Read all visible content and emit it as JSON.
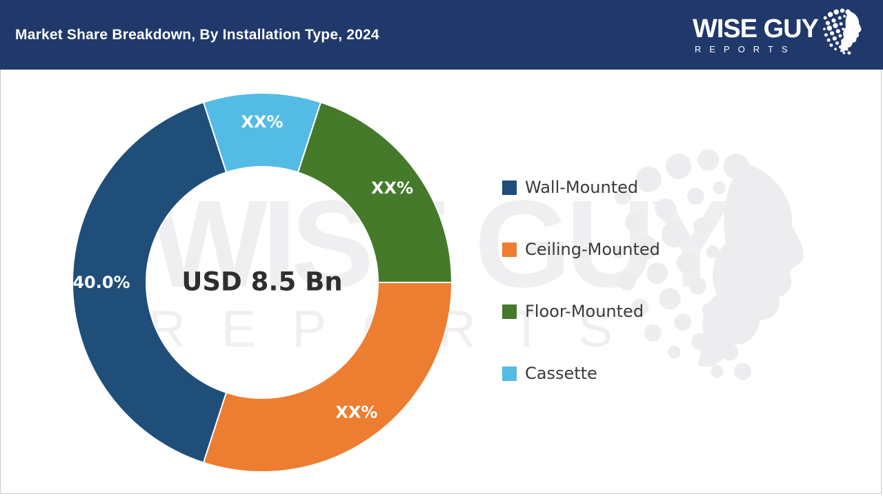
{
  "header": {
    "title": "Market Share Breakdown, By Installation Type, 2024",
    "brand": {
      "line1": "WISE GUY",
      "line2": "REPORTS"
    }
  },
  "watermark": {
    "line1": "WISE GUY",
    "line2": "REPORTS"
  },
  "colors": {
    "header_bg": "#20386a",
    "wall_mounted": "#1f4e79",
    "ceiling_mounted": "#ed7d31",
    "floor_mounted": "#447a29",
    "cassette": "#54bce4",
    "center_label_text": "#2e2e2e",
    "legend_text": "#3a3a3a",
    "slice_label_text": "#ffffff"
  },
  "chart_data": {
    "type": "pie",
    "subtype": "donut",
    "title": "Market Share Breakdown, By Installation Type, 2024",
    "center_label": "USD 8.5 Bn",
    "start_angle_deg": 108,
    "direction": "counterclockwise",
    "legend_position": "right",
    "slices": [
      {
        "name": "Wall-Mounted",
        "value_pct": 40,
        "display_label": "40.0%",
        "color": "#1f4e79"
      },
      {
        "name": "Ceiling-Mounted",
        "value_pct": 30,
        "display_label": "XX%",
        "color": "#ed7d31"
      },
      {
        "name": "Floor-Mounted",
        "value_pct": 20,
        "display_label": "XX%",
        "color": "#447a29"
      },
      {
        "name": "Cassette",
        "value_pct": 10,
        "display_label": "XX%",
        "color": "#54bce4"
      }
    ]
  }
}
